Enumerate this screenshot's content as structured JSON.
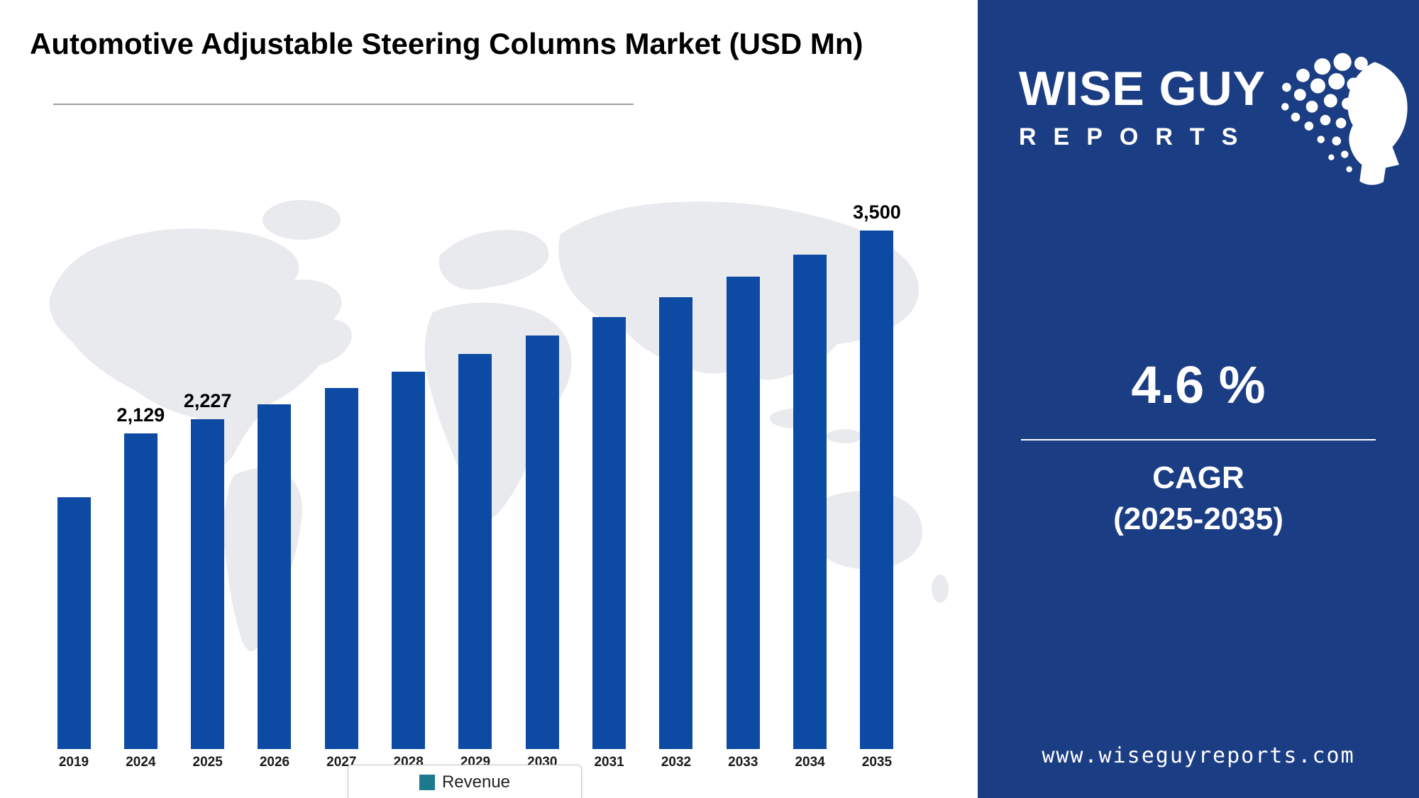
{
  "title": "Automotive Adjustable Steering Columns Market (USD Mn)",
  "chart_data": {
    "type": "bar",
    "title": "Automotive Adjustable Steering Columns Market (USD Mn)",
    "categories": [
      "2019",
      "2024",
      "2025",
      "2026",
      "2027",
      "2028",
      "2029",
      "2030",
      "2031",
      "2032",
      "2033",
      "2034",
      "2035"
    ],
    "values": [
      1700,
      2129,
      2227,
      2329,
      2437,
      2549,
      2666,
      2789,
      2917,
      3051,
      3191,
      3338,
      3500
    ],
    "value_labels": [
      "",
      "2,129",
      "2,227",
      "",
      "",
      "",
      "",
      "",
      "",
      "",
      "",
      "",
      "3,500"
    ],
    "xlabel": "",
    "ylabel": "",
    "ylim": [
      0,
      3500
    ],
    "grid": false,
    "legend_position": "bottom",
    "legend_entries": [
      "Revenue"
    ],
    "bar_color": "#0c4aa3",
    "legend_swatch_color": "#1b7a8f"
  },
  "legend": {
    "label": "Revenue"
  },
  "panel": {
    "logo_line1": "WISE GUY",
    "logo_line2": "REPORTS",
    "cagr_value": "4.6 %",
    "cagr_label": "CAGR",
    "cagr_period": "(2025-2035)",
    "website": "www.wiseguyreports.com",
    "bg_color": "#1b3d83"
  },
  "colors": {
    "bar": "#0c4aa3",
    "panel_bg": "#1b3d83",
    "map_watermark": "#e8eaed",
    "legend_swatch": "#1b7a8f"
  }
}
